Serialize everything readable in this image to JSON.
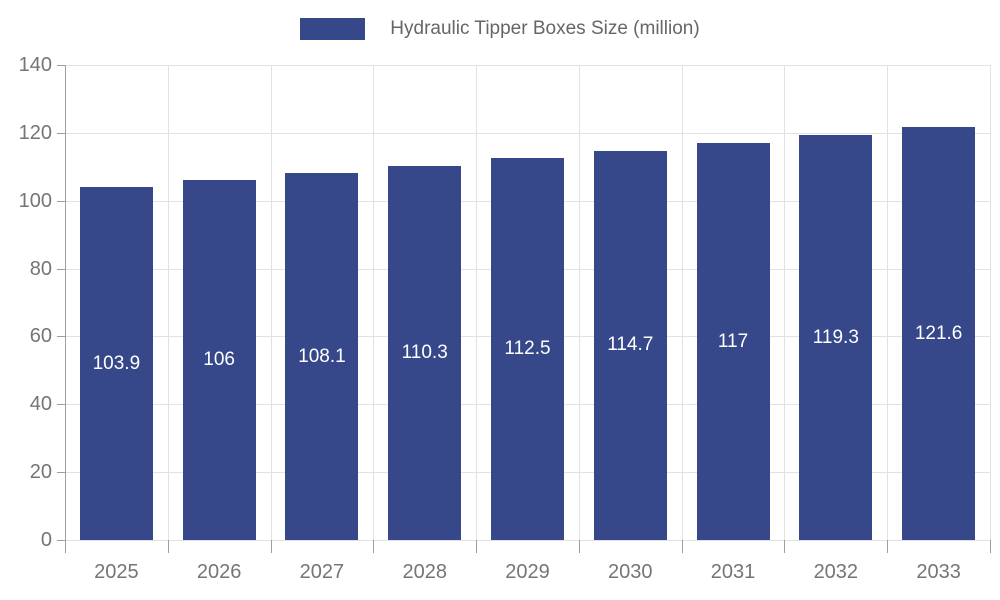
{
  "chart_data": {
    "type": "bar",
    "title": "Hydraulic Tipper Boxes Size (million)",
    "categories": [
      "2025",
      "2026",
      "2027",
      "2028",
      "2029",
      "2030",
      "2031",
      "2032",
      "2033"
    ],
    "series": [
      {
        "name": "Hydraulic Tipper Boxes Size (million)",
        "values": [
          103.9,
          106,
          108.1,
          110.3,
          112.5,
          114.7,
          117,
          119.3,
          121.6
        ]
      }
    ],
    "value_labels": [
      "103.9",
      "106",
      "108.1",
      "110.3",
      "112.5",
      "114.7",
      "117",
      "119.3",
      "121.6"
    ],
    "xlabel": "",
    "ylabel": "",
    "ylim": [
      0,
      140
    ],
    "yticks": [
      0,
      20,
      40,
      60,
      80,
      100,
      120,
      140
    ],
    "grid": true,
    "legend_position": "top-center",
    "colors": {
      "bar": "#36488a",
      "grid": "#e2e2e2",
      "axis": "#9e9e9e",
      "tick_text": "#757575",
      "legend_text": "#666666",
      "value_label": "#ffffff",
      "background": "#ffffff"
    }
  }
}
